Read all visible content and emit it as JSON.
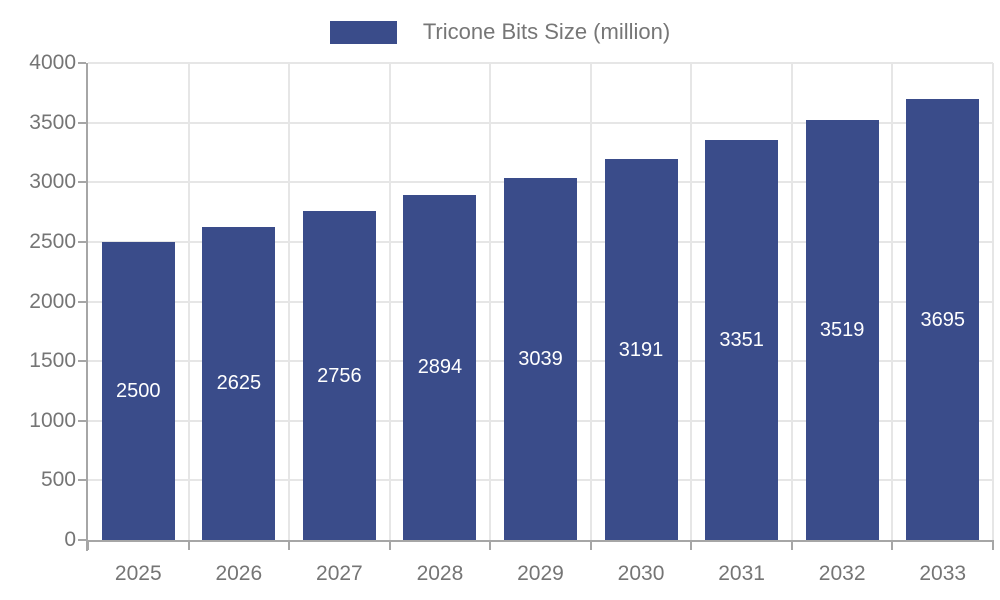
{
  "legend": {
    "label": "Tricone Bits Size (million)"
  },
  "chart_data": {
    "type": "bar",
    "title": "",
    "xlabel": "",
    "ylabel": "",
    "categories": [
      "2025",
      "2026",
      "2027",
      "2028",
      "2029",
      "2030",
      "2031",
      "2032",
      "2033"
    ],
    "series": [
      {
        "name": "Tricone Bits Size (million)",
        "values": [
          2500,
          2625,
          2756,
          2894,
          3039,
          3191,
          3351,
          3519,
          3695
        ]
      }
    ],
    "data_labels": [
      "2500",
      "2625",
      "2756",
      "2894",
      "3039",
      "3191",
      "3351",
      "3519",
      "3695"
    ],
    "ylim": [
      0,
      4000
    ],
    "yticks": [
      0,
      500,
      1000,
      1500,
      2000,
      2500,
      3000,
      3500,
      4000
    ],
    "grid": true,
    "legend_position": "top",
    "colors": {
      "bar": "#3A4C8A",
      "bar_label": "#ffffff",
      "axis_line": "#a6a6a6",
      "grid_line": "#e6e6e6",
      "tick_text": "#757575",
      "legend_text": "#767676"
    }
  }
}
